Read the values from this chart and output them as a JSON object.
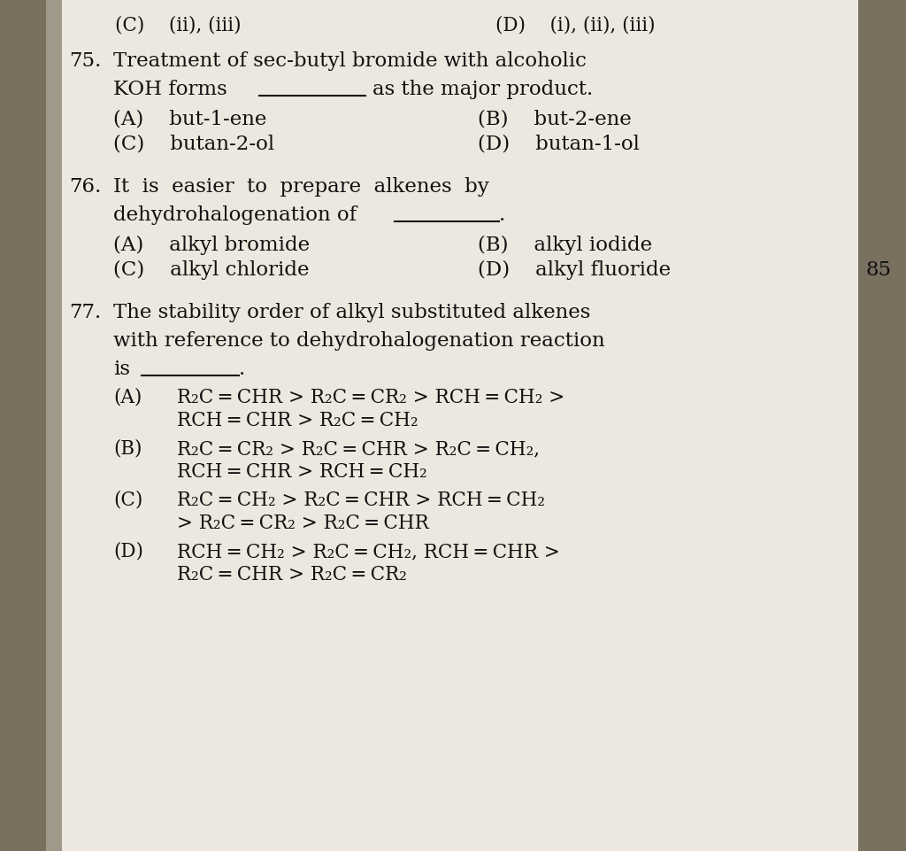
{
  "bg_color": "#b8b0a0",
  "page_bg": "#ede8df",
  "text_color": "#111111",
  "left_strip_color": "#7a7060",
  "right_strip_color": "#7a7060",
  "fs_main": 16.5,
  "fs_chem": 15.5,
  "top_line": "(C)    (ii), (iii)",
  "top_line_right": "(D)    (i), (ii), (iii)",
  "q75_num": "75.",
  "q75_l1": "Treatment of sec-butyl bromide with alcoholic",
  "q75_l2_pre": "KOH forms",
  "q75_l2_post": "as the major product.",
  "q75_A": "(A)    but-1-ene",
  "q75_B": "(B)    but-2-ene",
  "q75_C": "(C)    butan-2-ol",
  "q75_D": "(D)    butan-1-ol",
  "q76_num": "76.",
  "q76_l1": "It  is  easier  to  prepare  alkenes  by",
  "q76_l2_pre": "dehydrohalogenation of",
  "q76_l2_post": ".",
  "q76_A": "(A)    alkyl bromide",
  "q76_B": "(B)    alkyl iodide",
  "q76_C": "(C)    alkyl chloride",
  "q76_D": "(D)    alkyl fluoride",
  "page_num": "85",
  "q77_num": "77.",
  "q77_l1": "The stability order of alkyl substituted alkenes",
  "q77_l2": "with reference to dehydrohalogenation reaction",
  "q77_l3_pre": "is",
  "q77_l3_post": ".",
  "q77_A": "(A)",
  "q77_A_l1": "R₂C = CHR > R₂C = CR₂ > RCH = CH₂ >",
  "q77_A_l2": "RCH = CHR > R₂C = CH₂",
  "q77_B": "(B)",
  "q77_B_l1": "R₂C = CR₂ > R₂C = CHR > R₂C = CH₂,",
  "q77_B_l2": "RCH = CHR > RCH = CH₂",
  "q77_C": "(C)",
  "q77_C_l1": "R₂C = CH₂ > R₂C = CHR > RCH = CH₂",
  "q77_C_l2": "> R₂C = CR₂ > R₂C = CHR",
  "q77_D": "(D)",
  "q77_D_l1": "RCH = CH₂ > R₂C = CH₂, RCH = CHR >",
  "q77_D_l2": "R₂C = CHR > R₂C = CR₂"
}
